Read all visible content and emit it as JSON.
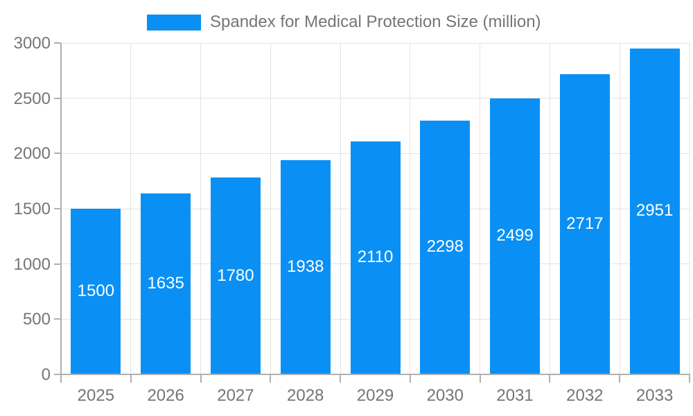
{
  "chart_data": {
    "type": "bar",
    "title": "Spandex for Medical Protection Size (million)",
    "legend": {
      "label": "Spandex for Medical Protection Size (million)",
      "position": "top"
    },
    "categories": [
      "2025",
      "2026",
      "2027",
      "2028",
      "2029",
      "2030",
      "2031",
      "2032",
      "2033"
    ],
    "values": [
      1500,
      1635,
      1780,
      1938,
      2110,
      2298,
      2499,
      2717,
      2951
    ],
    "xlabel": "",
    "ylabel": "",
    "ylim": [
      0,
      3000
    ],
    "yticks": [
      0,
      500,
      1000,
      1500,
      2000,
      2500,
      3000
    ],
    "grid": true,
    "value_labels_shown": true,
    "colors": {
      "bar": "#0a90f4",
      "value_label": "#ffffff",
      "axis": "#b0b0b0",
      "grid": "#e3e3e3",
      "text": "#757575",
      "background": "#ffffff"
    }
  }
}
